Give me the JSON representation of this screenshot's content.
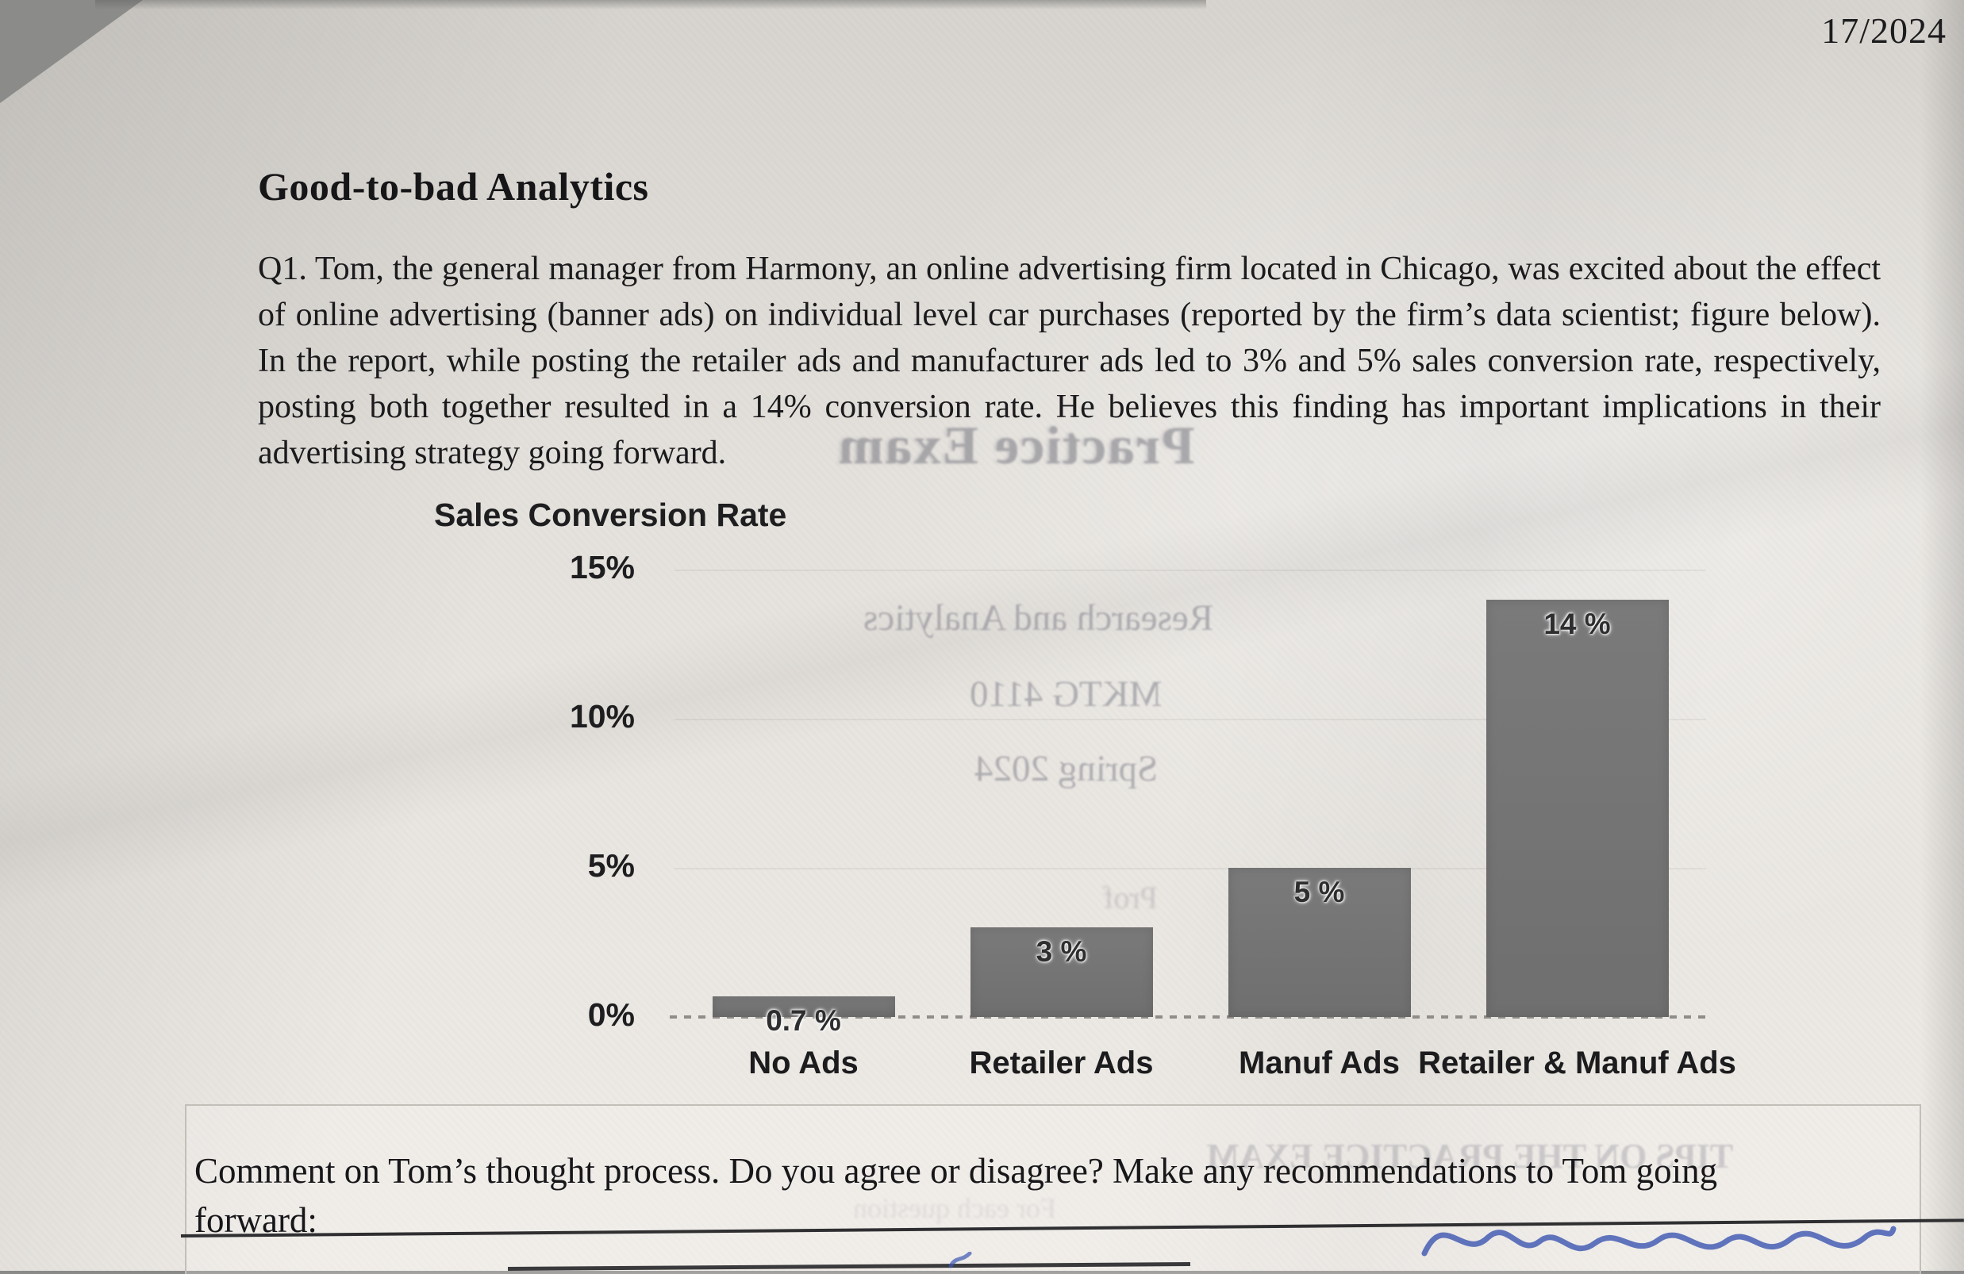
{
  "page": {
    "date_header": "17/2024",
    "title": "Good-to-bad Analytics",
    "question_paragraph": "Q1. Tom, the general manager from Harmony, an online advertising firm located in Chicago, was excited about the effect of online advertising (banner ads) on individual level car purchases (reported by the firm’s data scientist; figure below). In the report, while posting the retailer ads and manufacturer ads led to 3% and 5% sales conversion rate, respectively, posting both together resulted in a 14% conversion rate. He believes this finding has important implications in their advertising strategy going forward.",
    "comment_prompt": "Comment on Tom’s thought process. Do you agree or disagree? Make any recommendations to Tom going forward:"
  },
  "watermarks": {
    "practice_exam": "Practice Exam",
    "course_line1": "Research and Analytics",
    "course_line2": "MKTG 4110",
    "course_line3": "Spring 2024",
    "prof": "Prof",
    "tips_heading": "TIPS ON THE PRACTICE EXAM",
    "tips_line": "For each question"
  },
  "chart_data": {
    "type": "bar",
    "title": "Sales Conversion Rate",
    "categories": [
      "No Ads",
      "Retailer Ads",
      "Manuf Ads",
      "Retailer & Manuf Ads"
    ],
    "values": [
      0.7,
      3,
      5,
      14
    ],
    "value_labels": [
      "0.7 %",
      "3 %",
      "5 %",
      "14 %"
    ],
    "ytick_labels": [
      "15%",
      "10%",
      "5%",
      "0%"
    ],
    "ylim": [
      0,
      15
    ],
    "xlabel": "",
    "ylabel": "",
    "grid": "off",
    "legend": "none",
    "bar_color": "#7a7a7a"
  }
}
